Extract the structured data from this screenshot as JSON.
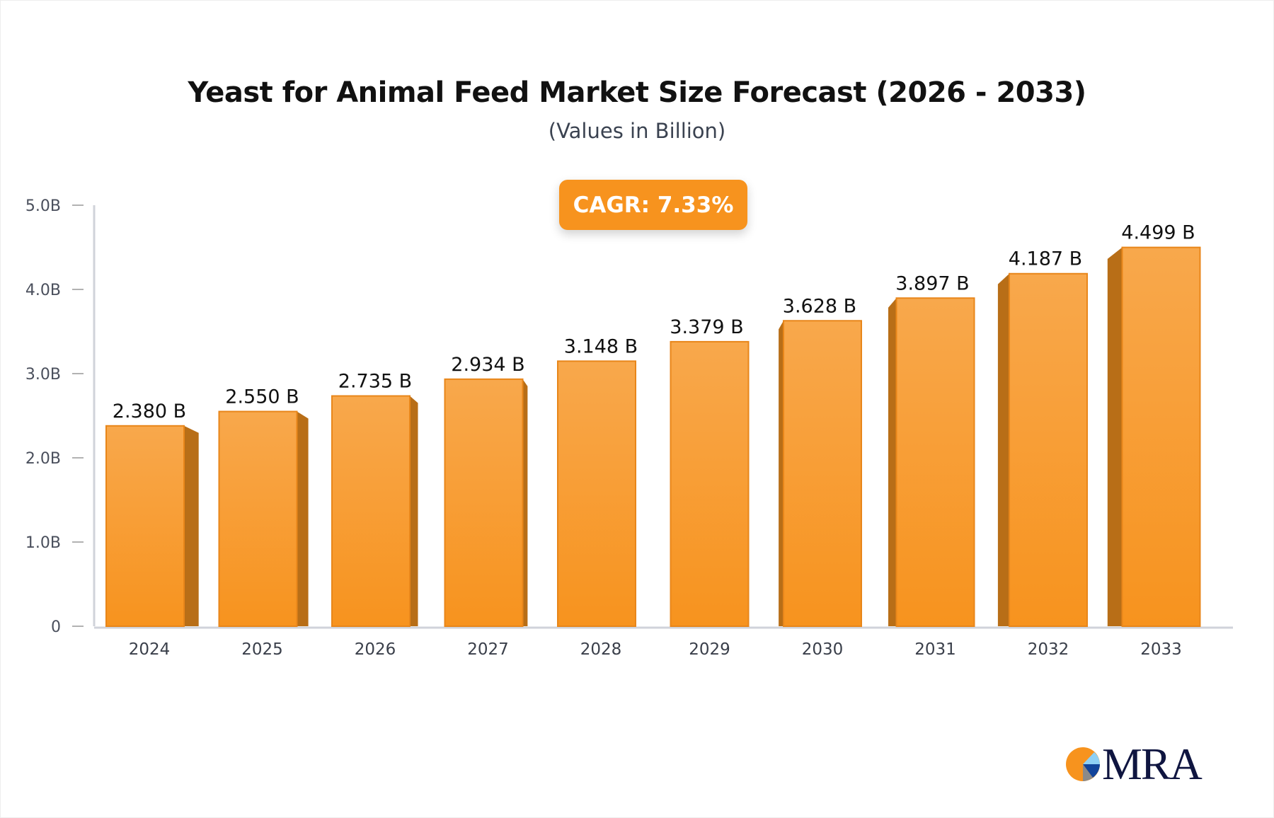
{
  "chart_data": {
    "type": "bar",
    "title": "Yeast for Animal Feed Market Size Forecast (2026 - 2033)",
    "subtitle": "(Values in Billion)",
    "annotation": "CAGR: 7.33%",
    "categories": [
      "2024",
      "2025",
      "2026",
      "2027",
      "2028",
      "2029",
      "2030",
      "2031",
      "2032",
      "2033"
    ],
    "values": [
      2.38,
      2.55,
      2.735,
      2.934,
      3.148,
      3.379,
      3.628,
      3.897,
      4.187,
      4.499
    ],
    "data_labels": [
      "2.380 B",
      "2.550 B",
      "2.735 B",
      "2.934 B",
      "3.148 B",
      "3.379 B",
      "3.628 B",
      "3.897 B",
      "4.187 B",
      "4.499 B"
    ],
    "yticks": [
      0,
      1,
      2,
      3,
      4,
      5
    ],
    "ytick_labels": [
      "0",
      "1.0B",
      "2.0B",
      "3.0B",
      "4.0B",
      "5.0B"
    ],
    "ylim": [
      0,
      5
    ],
    "grid": false,
    "colors": {
      "bar": "#f7a244",
      "bar_bottom": "#f7931e",
      "bar_side": "#b86e17",
      "bar_edge": "#e8861a",
      "axis": "#d0d3da"
    }
  },
  "logo": {
    "text": "MRA"
  }
}
